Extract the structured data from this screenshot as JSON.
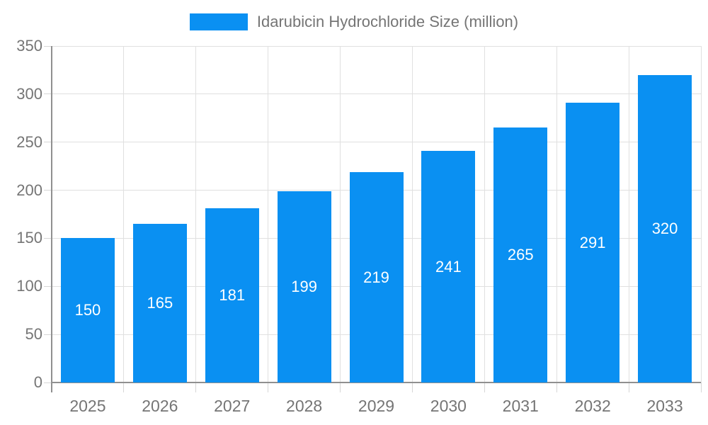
{
  "legend": {
    "label": "Idarubicin Hydrochloride Size (million)"
  },
  "colors": {
    "bar": "#0a90f2",
    "axis": "#909090",
    "gridline": "#e0e0e0",
    "tick": "#d6d6d6",
    "label_text": "#757575",
    "value_text": "#ffffff"
  },
  "chart_data": {
    "type": "bar",
    "title": "Idarubicin Hydrochloride Size (million)",
    "categories": [
      "2025",
      "2026",
      "2027",
      "2028",
      "2029",
      "2030",
      "2031",
      "2032",
      "2033"
    ],
    "values": [
      150,
      165,
      181,
      199,
      219,
      241,
      265,
      291,
      320
    ],
    "xlabel": "",
    "ylabel": "",
    "ylim": [
      0,
      350
    ],
    "ytick_step": 50,
    "ytick_labels": [
      "0",
      "50",
      "100",
      "150",
      "200",
      "250",
      "300",
      "350"
    ],
    "grid": true,
    "legend_position": "top",
    "value_labels": "inside-center"
  }
}
